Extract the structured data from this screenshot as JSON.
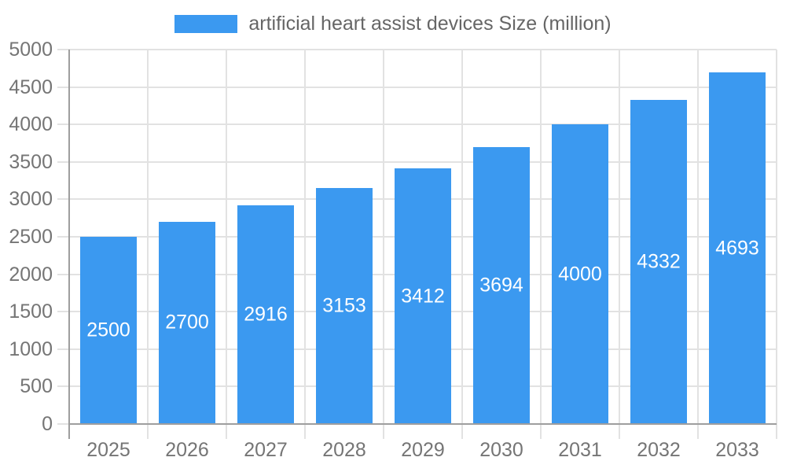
{
  "page": {
    "background": "#ffffff"
  },
  "legend": {
    "label": "artificial heart assist devices Size (million)",
    "swatch_color": "#3B99F0"
  },
  "chart_data": {
    "type": "bar",
    "title": "",
    "xlabel": "",
    "ylabel": "",
    "categories": [
      "2025",
      "2026",
      "2027",
      "2028",
      "2029",
      "2030",
      "2031",
      "2032",
      "2033"
    ],
    "series": [
      {
        "name": "artificial heart assist devices Size (million)",
        "values": [
          2500,
          2700,
          2916,
          3153,
          3412,
          3694,
          4000,
          4332,
          4693
        ]
      }
    ],
    "value_labels_shown": true,
    "ylim": [
      0,
      5000
    ],
    "ytick_step": 500,
    "yticks": [
      0,
      500,
      1000,
      1500,
      2000,
      2500,
      3000,
      3500,
      4000,
      4500,
      5000
    ],
    "grid": true,
    "legend_position": "top",
    "colors": {
      "bar": "#3B99F0",
      "value_label": "#ffffff",
      "axis_label": "#757575",
      "legend_text": "#666666",
      "axis_line": "#9e9e9e",
      "gridline": "#e2e2e2"
    }
  }
}
